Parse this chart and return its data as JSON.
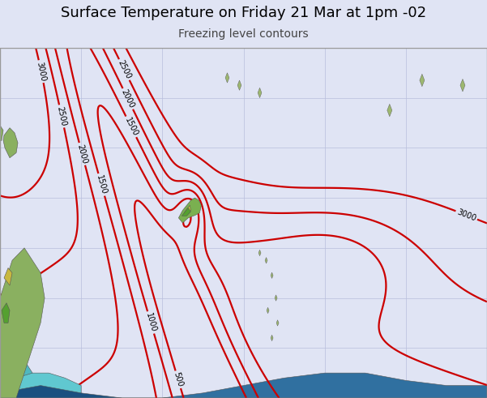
{
  "title": "Surface Temperature on Friday 21 Mar at 1pm -02",
  "subtitle": "Freezing level contours",
  "title_fontsize": 13,
  "subtitle_fontsize": 10,
  "ocean_color": "#d4d9ef",
  "contour_color": "#cc0000",
  "contour_linewidth": 1.6,
  "label_fontsize": 7,
  "grid_color": "#b8bedd",
  "figsize": [
    6.01,
    4.91
  ],
  "dpi": 100,
  "lon_min": -60,
  "lon_max": 0,
  "lat_min": -62,
  "lat_max": -48,
  "contour_levels": [
    500,
    1000,
    1500,
    2000,
    2500,
    3000
  ]
}
